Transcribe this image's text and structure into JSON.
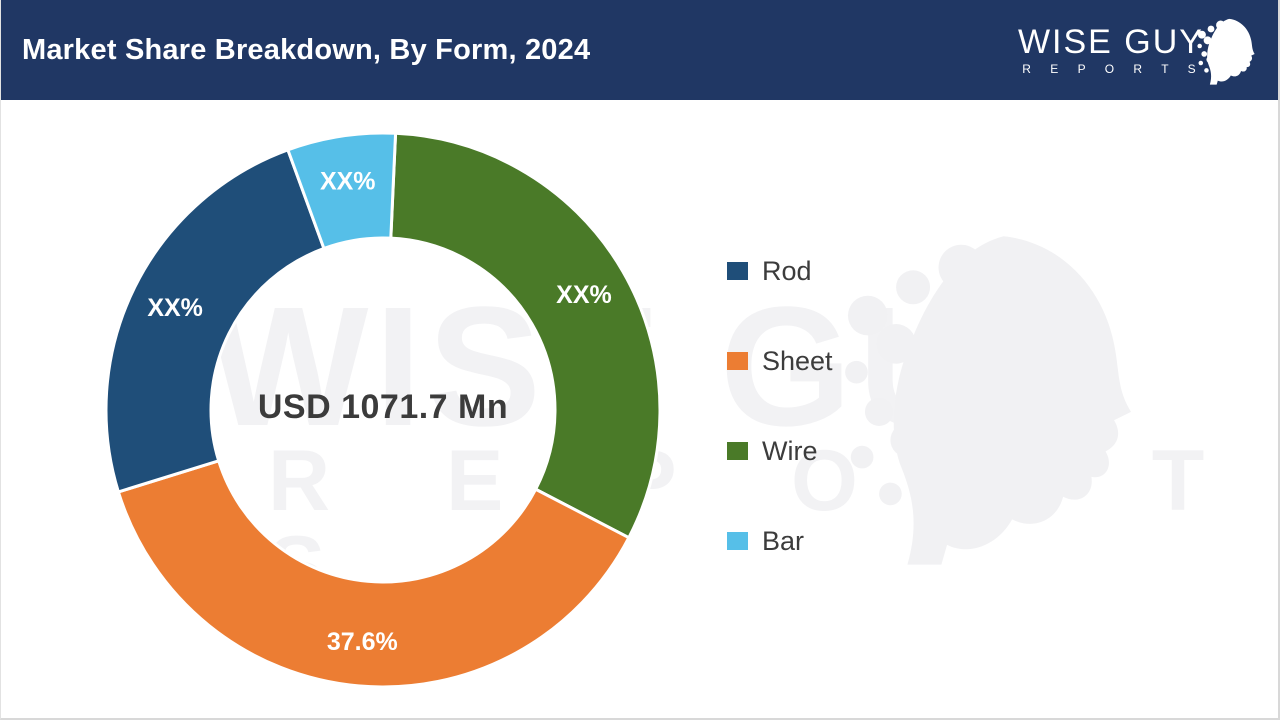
{
  "header": {
    "title": "Market Share Breakdown, By Form, 2024",
    "bg_color": "#203764",
    "logo": {
      "line1": "WISE GUY",
      "line2": "R E P O R T S"
    }
  },
  "watermark": {
    "line1": "WISE GUY",
    "line2": "R E P O R T S"
  },
  "chart_data": {
    "type": "donut",
    "title": "Market Share Breakdown, By Form, 2024",
    "center_label": "USD 1071.7 Mn",
    "start_angle_deg": 2.6,
    "legend_position": "right",
    "slices": [
      {
        "name": "Wire",
        "value_pct": 31.9,
        "label": "XX%",
        "color": "#4a7a28"
      },
      {
        "name": "Sheet",
        "value_pct": 37.6,
        "label": "37.6%",
        "color": "#ec7d33"
      },
      {
        "name": "Rod",
        "value_pct": 24.2,
        "label": "XX%",
        "color": "#1f4e79"
      },
      {
        "name": "Bar",
        "value_pct": 6.3,
        "label": "XX%",
        "color": "#56bfe8"
      }
    ],
    "legend": [
      {
        "label": "Rod",
        "color": "#1f4e79"
      },
      {
        "label": "Sheet",
        "color": "#ec7d33"
      },
      {
        "label": "Wire",
        "color": "#4a7a28"
      },
      {
        "label": "Bar",
        "color": "#56bfe8"
      }
    ]
  }
}
